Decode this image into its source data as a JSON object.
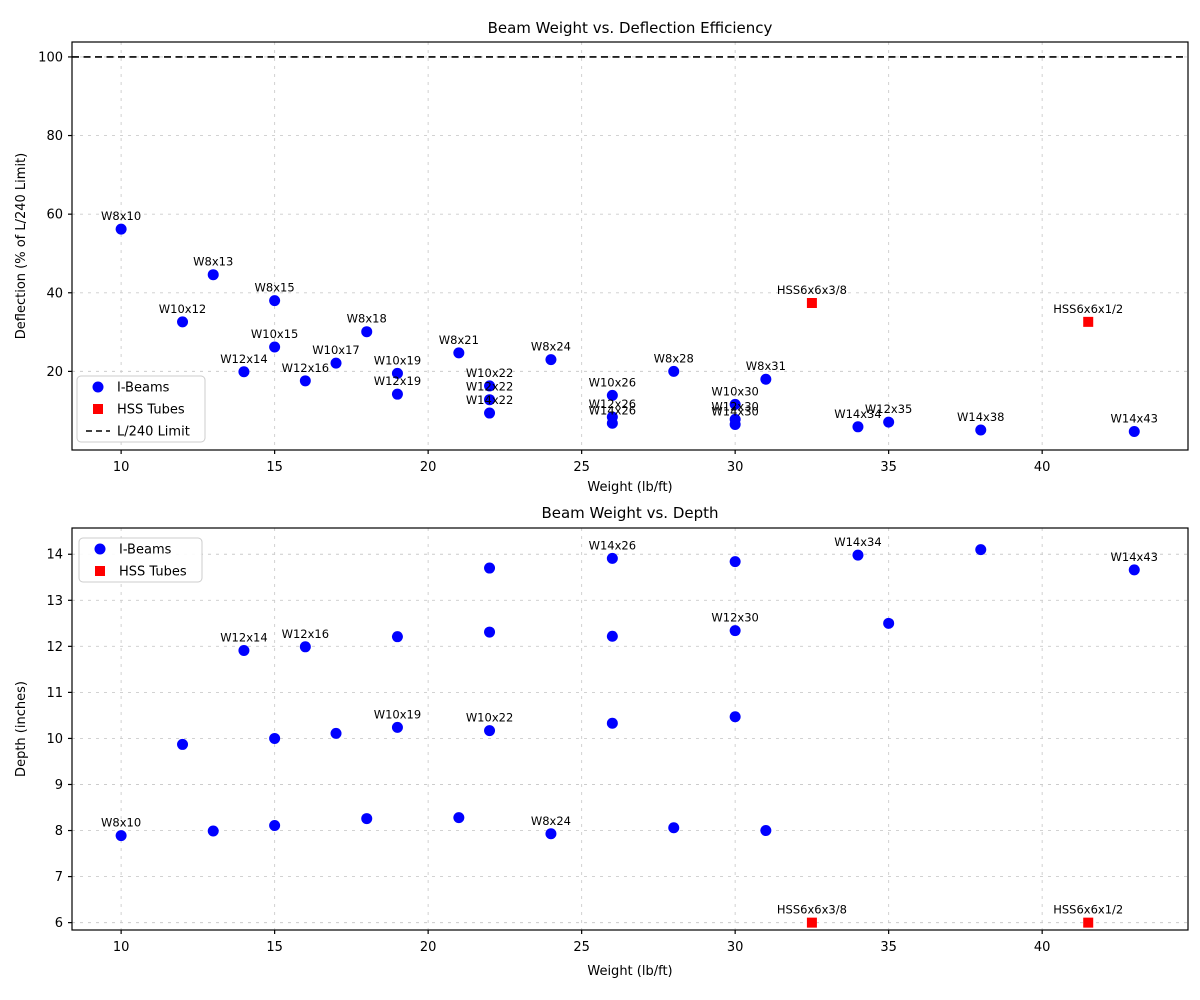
{
  "colors": {
    "ibeam": "#0000ff",
    "hss": "#ff0000",
    "limit_line": "#000000",
    "grid": "#cccccc",
    "spine": "#000000",
    "legend_border": "#cccccc"
  },
  "chart_data": [
    {
      "type": "scatter",
      "title": "Beam Weight vs. Deflection Efficiency",
      "xlabel": "Weight (lb/ft)",
      "ylabel": "Deflection (% of L/240 Limit)",
      "xlim": [
        8.4,
        44.75
      ],
      "ylim": [
        0,
        103.8
      ],
      "xticks": [
        10,
        15,
        20,
        25,
        30,
        35,
        40
      ],
      "yticks": [
        20,
        40,
        60,
        80,
        100
      ],
      "grid": true,
      "legend_position": "lower-left",
      "legend": [
        {
          "label": "I-Beams",
          "marker": "circle",
          "color": "#0000ff"
        },
        {
          "label": "HSS Tubes",
          "marker": "square",
          "color": "#ff0000"
        },
        {
          "label": "L/240 Limit",
          "marker": "dashed-line",
          "color": "#000000"
        }
      ],
      "hline": {
        "y": 100,
        "style": "dashed",
        "color": "#000000",
        "label": "L/240 Limit"
      },
      "series": [
        {
          "name": "I-Beams",
          "marker": "circle",
          "color": "#0000ff",
          "points": [
            {
              "label": "W8x10",
              "x": 10,
              "y": 56.2
            },
            {
              "label": "W10x12",
              "x": 12,
              "y": 32.6
            },
            {
              "label": "W8x13",
              "x": 13,
              "y": 44.6
            },
            {
              "label": "W12x14",
              "x": 14,
              "y": 19.9
            },
            {
              "label": "W8x15",
              "x": 15,
              "y": 38.0
            },
            {
              "label": "W10x15",
              "x": 15,
              "y": 26.2
            },
            {
              "label": "W12x16",
              "x": 16,
              "y": 17.6
            },
            {
              "label": "W10x17",
              "x": 17,
              "y": 22.1
            },
            {
              "label": "W8x18",
              "x": 18,
              "y": 30.1
            },
            {
              "label": "W10x19",
              "x": 19,
              "y": 19.5
            },
            {
              "label": "W12x19",
              "x": 19,
              "y": 14.2
            },
            {
              "label": "W8x21",
              "x": 21,
              "y": 24.7
            },
            {
              "label": "W10x22",
              "x": 22,
              "y": 16.3
            },
            {
              "label": "W12x22",
              "x": 22,
              "y": 12.8
            },
            {
              "label": "W14x22",
              "x": 22,
              "y": 9.4
            },
            {
              "label": "W8x24",
              "x": 24,
              "y": 23.0
            },
            {
              "label": "W10x26",
              "x": 26,
              "y": 13.9
            },
            {
              "label": "W12x26",
              "x": 26,
              "y": 8.4
            },
            {
              "label": "W14x26",
              "x": 26,
              "y": 6.8
            },
            {
              "label": "W8x28",
              "x": 28,
              "y": 20.0
            },
            {
              "label": "W10x30",
              "x": 30,
              "y": 11.6
            },
            {
              "label": "W12x30",
              "x": 30,
              "y": 7.8
            },
            {
              "label": "W14x30",
              "x": 30,
              "y": 6.5
            },
            {
              "label": "W8x31",
              "x": 31,
              "y": 18.0
            },
            {
              "label": "W14x34",
              "x": 34,
              "y": 5.9
            },
            {
              "label": "W12x35",
              "x": 35,
              "y": 7.1
            },
            {
              "label": "W14x38",
              "x": 38,
              "y": 5.1
            },
            {
              "label": "W14x43",
              "x": 43,
              "y": 4.7
            }
          ]
        },
        {
          "name": "HSS Tubes",
          "marker": "square",
          "color": "#ff0000",
          "points": [
            {
              "label": "HSS6x6x3/8",
              "x": 32.5,
              "y": 37.4
            },
            {
              "label": "HSS6x6x1/2",
              "x": 41.5,
              "y": 32.6
            }
          ]
        }
      ]
    },
    {
      "type": "scatter",
      "title": "Beam Weight vs. Depth",
      "xlabel": "Weight (lb/ft)",
      "ylabel": "Depth (inches)",
      "xlim": [
        8.4,
        44.75
      ],
      "ylim": [
        5.84,
        14.57
      ],
      "xticks": [
        10,
        15,
        20,
        25,
        30,
        35,
        40
      ],
      "yticks": [
        6,
        7,
        8,
        9,
        10,
        11,
        12,
        13,
        14
      ],
      "grid": true,
      "legend_position": "upper-left",
      "legend": [
        {
          "label": "I-Beams",
          "marker": "circle",
          "color": "#0000ff"
        },
        {
          "label": "HSS Tubes",
          "marker": "square",
          "color": "#ff0000"
        }
      ],
      "series": [
        {
          "name": "I-Beams",
          "marker": "circle",
          "color": "#0000ff",
          "points": [
            {
              "label": "W8x10",
              "x": 10,
              "y": 7.89,
              "label_visible": true
            },
            {
              "label": "W10x12",
              "x": 12,
              "y": 9.87,
              "label_visible": false
            },
            {
              "label": "W8x13",
              "x": 13,
              "y": 7.99,
              "label_visible": false
            },
            {
              "label": "W12x14",
              "x": 14,
              "y": 11.91,
              "label_visible": true
            },
            {
              "label": "W8x15",
              "x": 15,
              "y": 8.11,
              "label_visible": false
            },
            {
              "label": "W10x15",
              "x": 15,
              "y": 10.0,
              "label_visible": false
            },
            {
              "label": "W12x16",
              "x": 16,
              "y": 11.99,
              "label_visible": true
            },
            {
              "label": "W10x17",
              "x": 17,
              "y": 10.11,
              "label_visible": false
            },
            {
              "label": "W8x18",
              "x": 18,
              "y": 8.26,
              "label_visible": false
            },
            {
              "label": "W10x19",
              "x": 19,
              "y": 10.24,
              "label_visible": true
            },
            {
              "label": "W12x19",
              "x": 19,
              "y": 12.21,
              "label_visible": false
            },
            {
              "label": "W8x21",
              "x": 21,
              "y": 8.28,
              "label_visible": false
            },
            {
              "label": "W10x22",
              "x": 22,
              "y": 10.17,
              "label_visible": true
            },
            {
              "label": "W12x22",
              "x": 22,
              "y": 12.31,
              "label_visible": false
            },
            {
              "label": "W14x22",
              "x": 22,
              "y": 13.7,
              "label_visible": false
            },
            {
              "label": "W8x24",
              "x": 24,
              "y": 7.93,
              "label_visible": true
            },
            {
              "label": "W10x26",
              "x": 26,
              "y": 10.33,
              "label_visible": false
            },
            {
              "label": "W12x26",
              "x": 26,
              "y": 12.22,
              "label_visible": false
            },
            {
              "label": "W14x26",
              "x": 26,
              "y": 13.91,
              "label_visible": true
            },
            {
              "label": "W8x28",
              "x": 28,
              "y": 8.06,
              "label_visible": false
            },
            {
              "label": "W10x30",
              "x": 30,
              "y": 10.47,
              "label_visible": false
            },
            {
              "label": "W12x30",
              "x": 30,
              "y": 12.34,
              "label_visible": true
            },
            {
              "label": "W14x30",
              "x": 30,
              "y": 13.84,
              "label_visible": false
            },
            {
              "label": "W8x31",
              "x": 31,
              "y": 8.0,
              "label_visible": false
            },
            {
              "label": "W14x34",
              "x": 34,
              "y": 13.98,
              "label_visible": true
            },
            {
              "label": "W12x35",
              "x": 35,
              "y": 12.5,
              "label_visible": false
            },
            {
              "label": "W14x38",
              "x": 38,
              "y": 14.1,
              "label_visible": false
            },
            {
              "label": "W14x43",
              "x": 43,
              "y": 13.66,
              "label_visible": true
            }
          ]
        },
        {
          "name": "HSS Tubes",
          "marker": "square",
          "color": "#ff0000",
          "points": [
            {
              "label": "HSS6x6x3/8",
              "x": 32.5,
              "y": 6.0,
              "label_visible": true
            },
            {
              "label": "HSS6x6x1/2",
              "x": 41.5,
              "y": 6.0,
              "label_visible": true
            }
          ]
        }
      ]
    }
  ]
}
